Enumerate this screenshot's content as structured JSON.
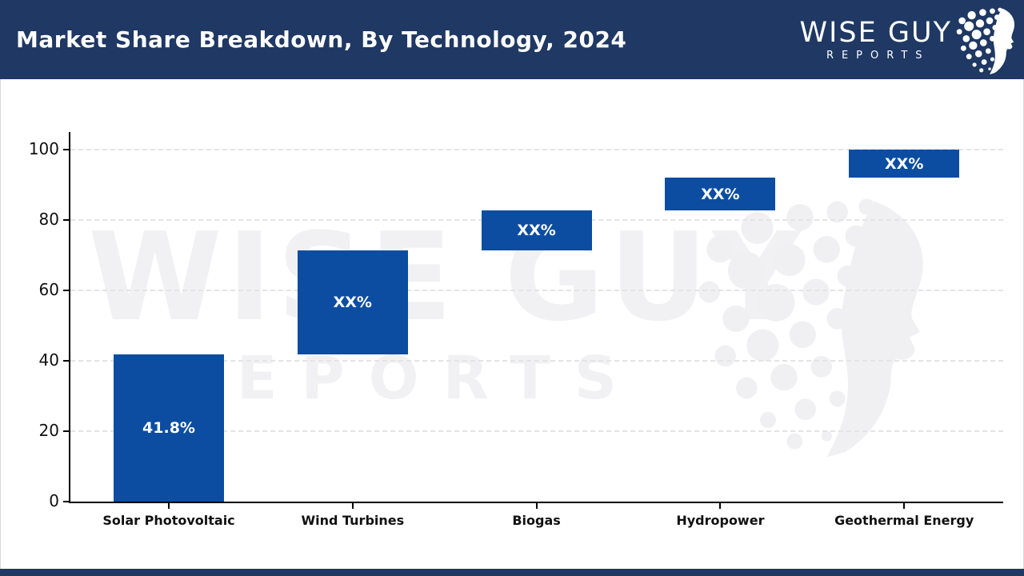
{
  "header": {
    "title": "Market Share Breakdown, By Technology, 2024",
    "logo": {
      "line1": "WISE GUY",
      "line2": "REPORTS"
    }
  },
  "watermark": {
    "line1": "WISE GUY",
    "line2": "REPORTS"
  },
  "colors": {
    "header_bg": "#1f3864",
    "bar": "#0c4da2",
    "bar_label_text": "#ffffff",
    "grid": "#e4e4e4",
    "axis": "#000000",
    "watermark": "#f1f1f3"
  },
  "chart_data": {
    "type": "bar",
    "subtype": "waterfall",
    "title": "Market Share Breakdown, By Technology, 2024",
    "categories": [
      "Solar Photovoltaic",
      "Wind Turbines",
      "Biogas",
      "Hydropower",
      "Geothermal Energy"
    ],
    "segments": [
      {
        "category": "Solar Photovoltaic",
        "start": 0,
        "end": 41.8,
        "label": "41.8%"
      },
      {
        "category": "Wind Turbines",
        "start": 41.8,
        "end": 71.3,
        "label": "XX%"
      },
      {
        "category": "Biogas",
        "start": 71.3,
        "end": 82.7,
        "label": "XX%"
      },
      {
        "category": "Hydropower",
        "start": 82.7,
        "end": 92.0,
        "label": "XX%"
      },
      {
        "category": "Geothermal Energy",
        "start": 92.0,
        "end": 100.0,
        "label": "XX%"
      }
    ],
    "yticks": [
      0,
      20,
      40,
      60,
      80,
      100
    ],
    "ylim": [
      0,
      105
    ],
    "xlabel": "",
    "ylabel": "",
    "grid": "horizontal-dashed",
    "legend": "none"
  }
}
